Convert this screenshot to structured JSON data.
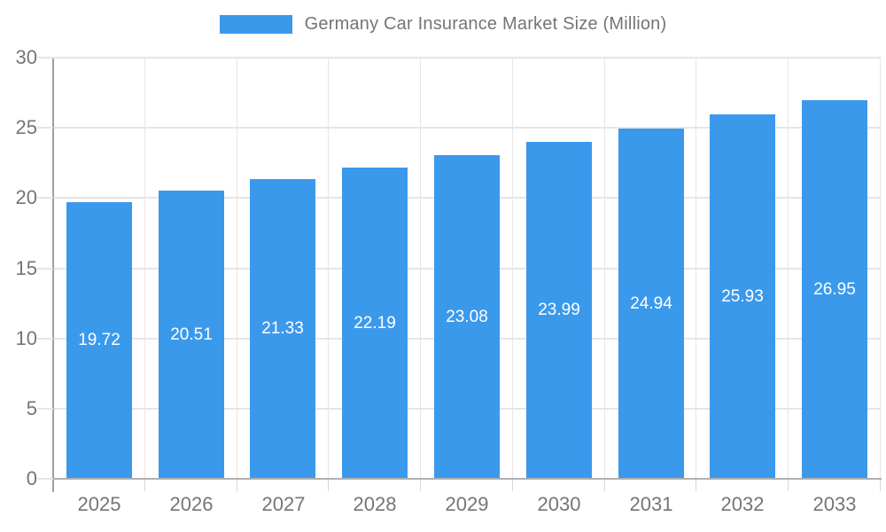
{
  "chart_data": {
    "type": "bar",
    "title": "Germany Car Insurance Market Size (Million)",
    "categories": [
      "2025",
      "2026",
      "2027",
      "2028",
      "2029",
      "2030",
      "2031",
      "2032",
      "2033"
    ],
    "values": [
      19.72,
      20.51,
      21.33,
      22.19,
      23.08,
      23.99,
      24.94,
      25.93,
      26.95
    ],
    "value_labels": [
      "19.72",
      "20.51",
      "21.33",
      "22.19",
      "23.08",
      "23.99",
      "24.94",
      "25.93",
      "26.95"
    ],
    "xlabel": "",
    "ylabel": "",
    "ylim": [
      0,
      30
    ],
    "yticks": [
      0,
      5,
      10,
      15,
      20,
      25,
      30
    ],
    "grid": true,
    "legend_position": "top",
    "colors": {
      "bar": "#3b99ec",
      "value_label": "#ffffff",
      "axis_text": "#757575",
      "gridline": "#e6e6e6",
      "x_axis_line": "#b0b0b0",
      "y_axis_line": "#9e9e9e"
    }
  }
}
